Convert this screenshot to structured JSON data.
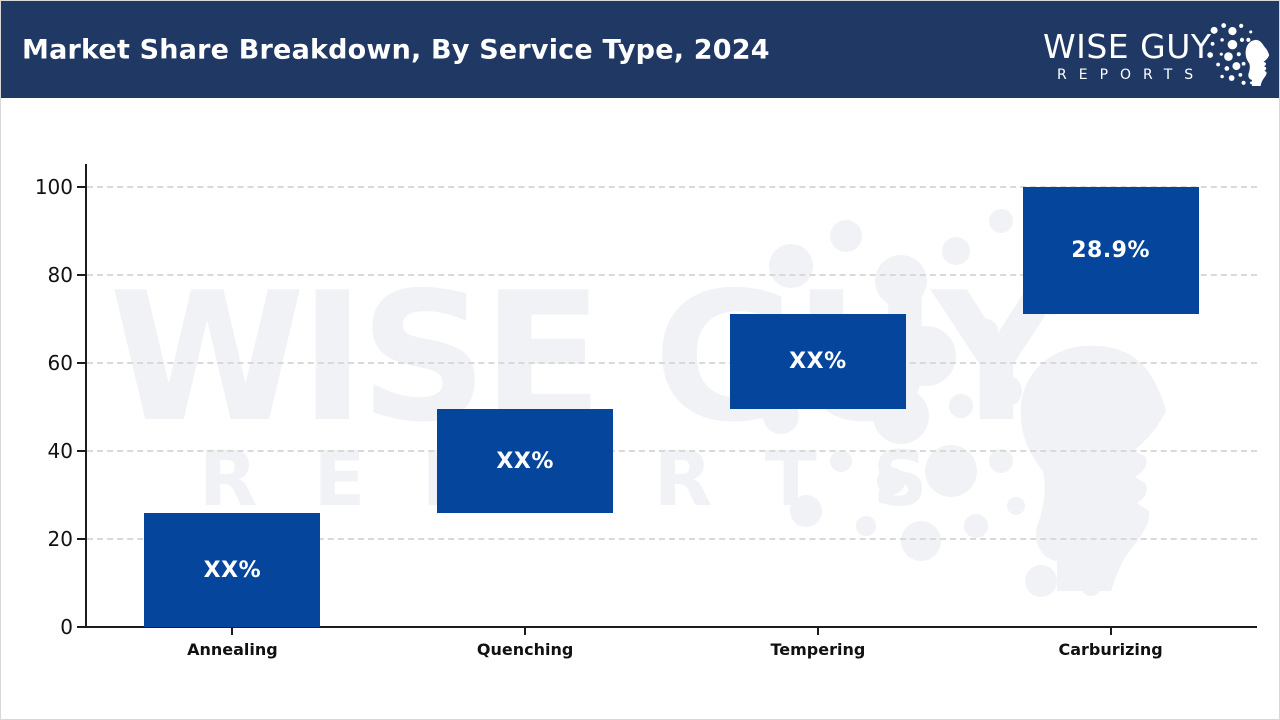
{
  "header": {
    "title": "Market Share Breakdown, By Service Type, 2024",
    "background_color": "#203864"
  },
  "logo": {
    "brand": "WISE GUY",
    "sub": "REPORTS"
  },
  "watermark": {
    "line1": "WISE GUY",
    "line2": "REPORTS"
  },
  "chart_data": {
    "type": "bar",
    "subtype": "floating-segment-waterfall",
    "title": "Market Share Breakdown, By Service Type, 2024",
    "categories": [
      "Annealing",
      "Quenching",
      "Tempering",
      "Carburizing"
    ],
    "segments": [
      {
        "category": "Annealing",
        "start": 0,
        "end": 25.8,
        "label": "XX%"
      },
      {
        "category": "Quenching",
        "start": 25.8,
        "end": 49.6,
        "label": "XX%"
      },
      {
        "category": "Tempering",
        "start": 49.6,
        "end": 71.1,
        "label": "XX%"
      },
      {
        "category": "Carburizing",
        "start": 71.1,
        "end": 100,
        "label": "28.9%"
      }
    ],
    "values": [
      25.8,
      23.8,
      21.5,
      28.9
    ],
    "bar_labels": [
      "XX%",
      "XX%",
      "XX%",
      "28.9%"
    ],
    "xlabel": "",
    "ylabel": "",
    "ylim": [
      0,
      105
    ],
    "yticks": [
      0,
      20,
      40,
      60,
      80,
      100
    ],
    "grid": "horizontal-dashed",
    "legend": "none",
    "bar_color": "#05459b",
    "bar_label_color": "#ffffff"
  }
}
